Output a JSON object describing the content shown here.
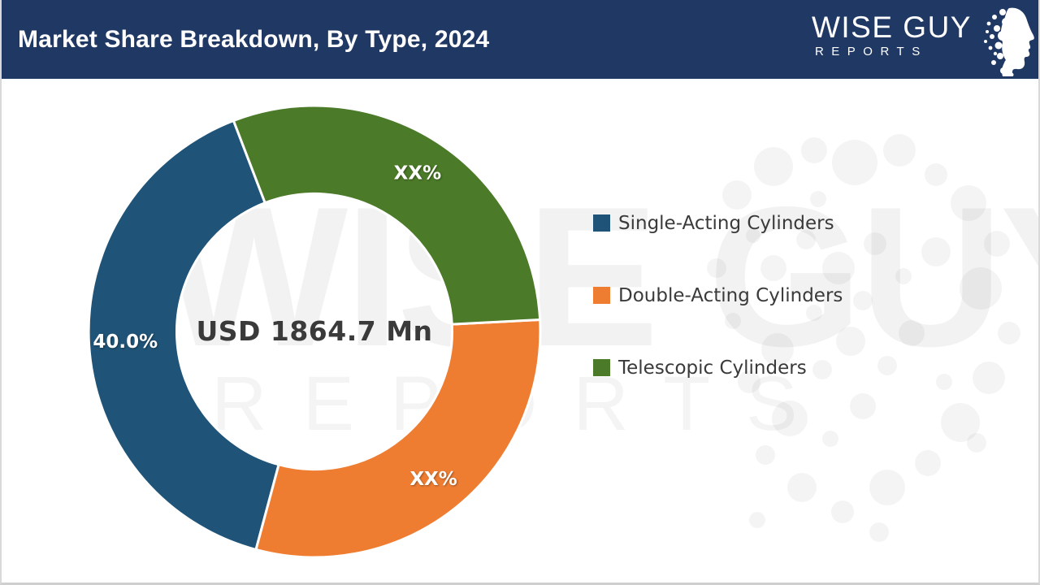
{
  "header": {
    "title": "Market Share Breakdown, By Type, 2024",
    "background_color": "#203864",
    "logo": {
      "line1": "WISE GUY",
      "line2": "REPORTS"
    }
  },
  "watermark": {
    "line1": "WISE GUY",
    "line2": "REPORTS"
  },
  "chart_data": {
    "type": "pie",
    "subtype": "donut",
    "title": "Market Share Breakdown, By Type, 2024",
    "center_label": "USD 1864.7 Mn",
    "start_angle_deg": 111,
    "direction": "counterclockwise",
    "inner_radius_ratio": 0.61,
    "legend_position": "right",
    "segments": [
      {
        "label": "Single-Acting Cylinders",
        "value_pct": 40.0,
        "display_label": "40.0%",
        "color": "#1f5377"
      },
      {
        "label": "Double-Acting Cylinders",
        "value_pct": 30.0,
        "display_label": "XX%",
        "color": "#ee7d32"
      },
      {
        "label": "Telescopic Cylinders",
        "value_pct": 30.0,
        "display_label": "XX%",
        "color": "#4b7a28"
      }
    ]
  }
}
